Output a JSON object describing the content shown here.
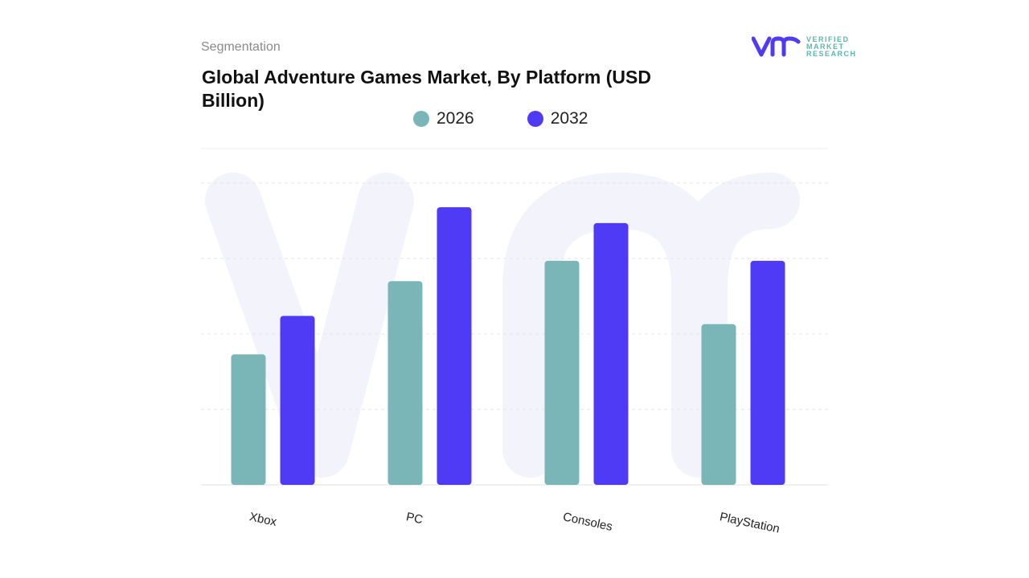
{
  "header": {
    "segment_label": "Segmentation",
    "title": "Global Adventure Games Market, By Platform (USD Billion)"
  },
  "logo": {
    "text_lines": [
      "VERIFIED",
      "MARKET",
      "RESEARCH"
    ],
    "mark": "vmr"
  },
  "chart_data": {
    "type": "bar",
    "title": "Global Adventure Games Market, By Platform (USD Billion)",
    "xlabel": "",
    "ylabel": "",
    "categories": [
      "Xbox",
      "PC",
      "Consoles",
      "PlayStation"
    ],
    "series": [
      {
        "name": "2026",
        "color": "#7ab5b8",
        "values": [
          1.73,
          2.7,
          2.97,
          2.13
        ]
      },
      {
        "name": "2032",
        "color": "#4f3bf5",
        "values": [
          2.24,
          3.68,
          3.47,
          2.97
        ]
      }
    ],
    "ylim": [
      0,
      4
    ],
    "grid": true,
    "legend_position": "top-center"
  }
}
